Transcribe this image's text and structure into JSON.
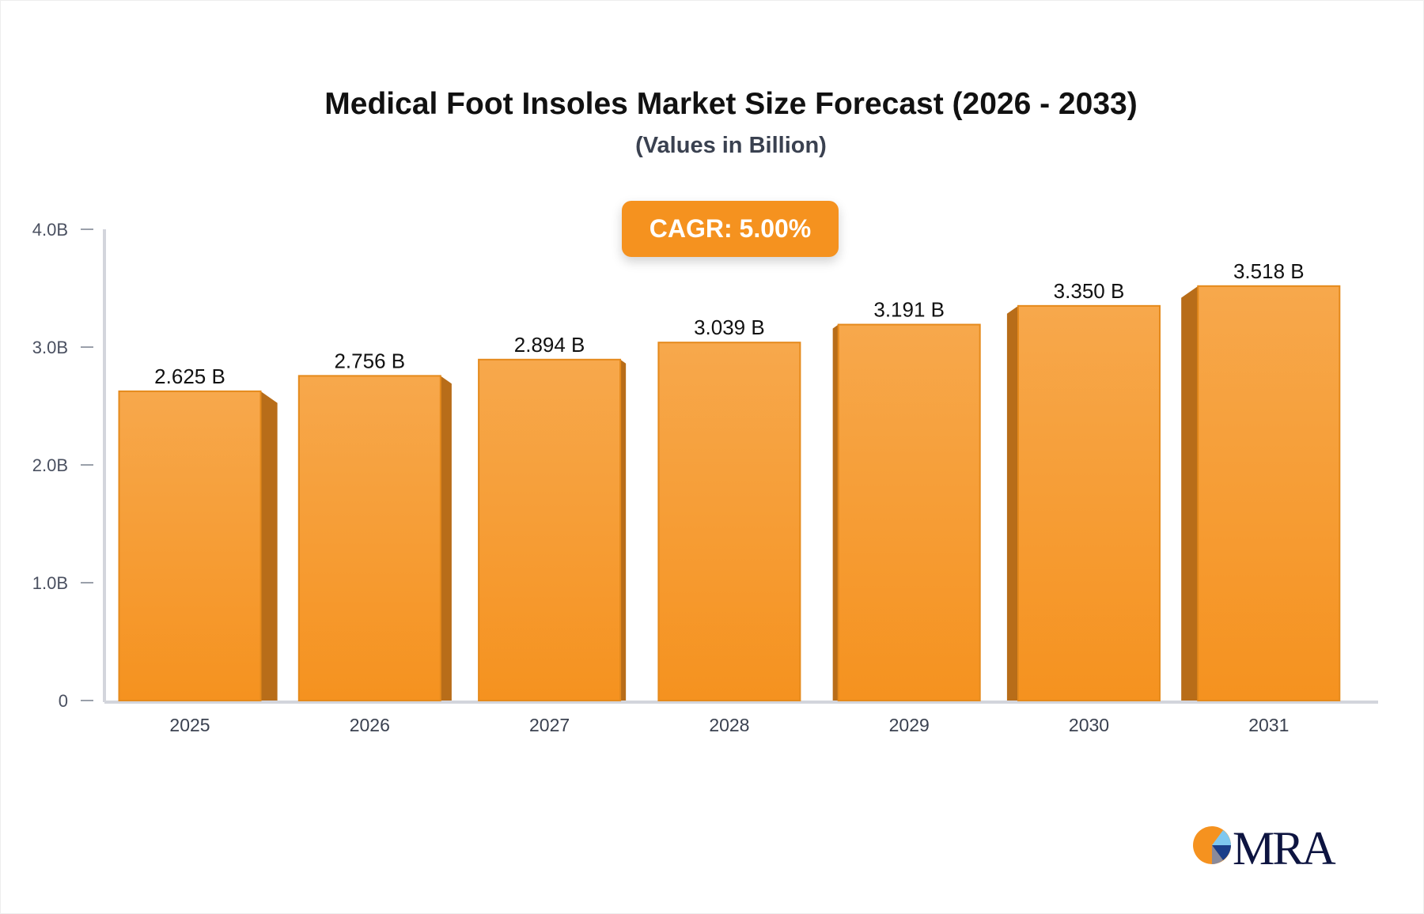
{
  "chart_data": {
    "type": "bar",
    "title": "Medical Foot Insoles Market Size Forecast (2026 - 2033)",
    "subtitle": "(Values in Billion)",
    "annotation": "CAGR: 5.00%",
    "categories": [
      "2025",
      "2026",
      "2027",
      "2028",
      "2029",
      "2030",
      "2031"
    ],
    "values": [
      2.625,
      2.756,
      2.894,
      3.039,
      3.191,
      3.35,
      3.518
    ],
    "data_labels": [
      "2.625 B",
      "2.756 B",
      "2.894 B",
      "3.039 B",
      "3.191 B",
      "3.350 B",
      "3.518 B"
    ],
    "ylim": [
      0,
      4
    ],
    "yticks": [
      0,
      1,
      2,
      3,
      4
    ],
    "ytick_labels": [
      "0",
      "1.0B",
      "2.0B",
      "3.0B",
      "4.0B"
    ],
    "grid": false,
    "bar_color": "#f5921f",
    "bar_side_color": "#b86d19"
  },
  "logo": {
    "text": "MRA"
  }
}
